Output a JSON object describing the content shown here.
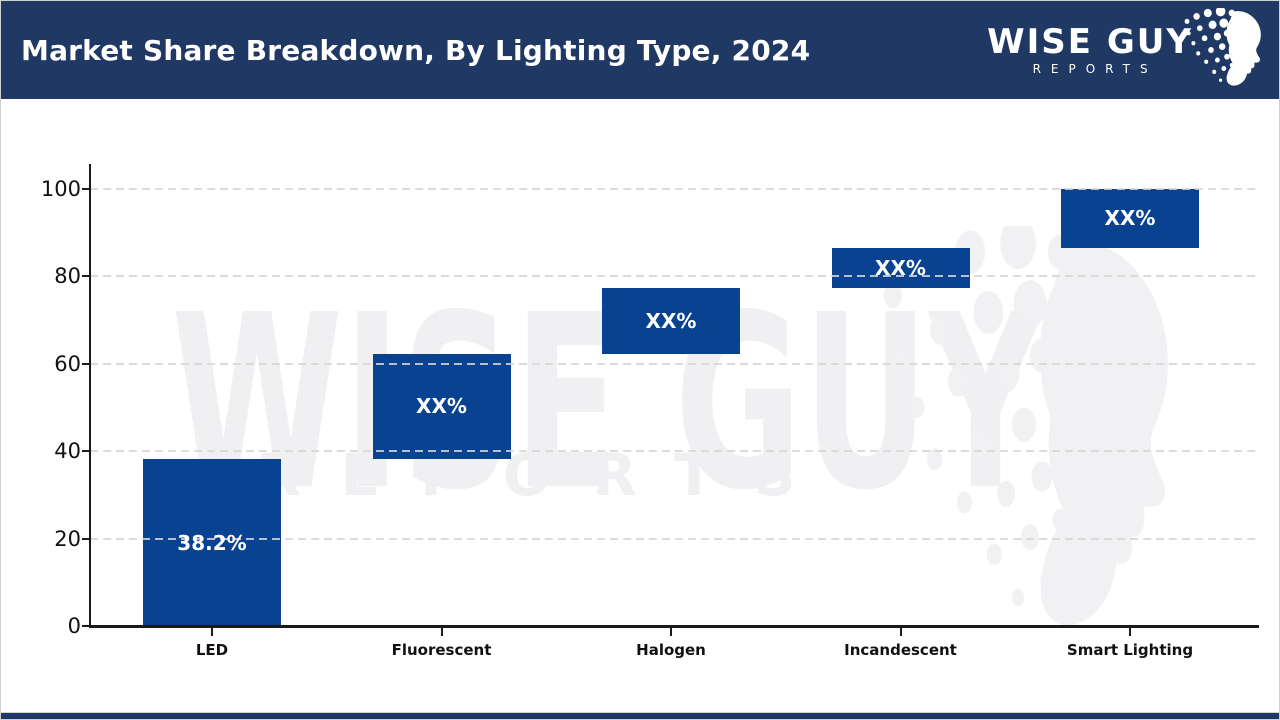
{
  "header": {
    "title": "Market Share Breakdown, By Lighting Type, 2024"
  },
  "logo": {
    "line1": "WISE GUY",
    "line2": "REPORTS"
  },
  "watermark": {
    "line1": "WISE GUY",
    "line2": "REPORTS"
  },
  "chart_data": {
    "type": "bar",
    "subtype": "waterfall",
    "title": "Market Share Breakdown, By Lighting Type, 2024",
    "categories": [
      "LED",
      "Fluorescent",
      "Halogen",
      "Incandescent",
      "Smart Lighting"
    ],
    "series": [
      {
        "name": "Market share (%)",
        "segments": [
          {
            "category": "LED",
            "start": 0,
            "end": 38.2,
            "label": "38.2%"
          },
          {
            "category": "Fluorescent",
            "start": 38.2,
            "end": 62.3,
            "label": "XX%"
          },
          {
            "category": "Halogen",
            "start": 62.3,
            "end": 77.3,
            "label": "XX%"
          },
          {
            "category": "Incandescent",
            "start": 77.3,
            "end": 86.5,
            "label": "XX%"
          },
          {
            "category": "Smart Lighting",
            "start": 86.5,
            "end": 100,
            "label": "XX%"
          }
        ]
      }
    ],
    "xlabel": "",
    "ylabel": "",
    "yticks": [
      0,
      20,
      40,
      60,
      80,
      100
    ],
    "ylim": [
      0,
      104.5
    ],
    "grid": "horizontal-dashed",
    "legend": "none",
    "colors": {
      "bar": "#084291",
      "bar_label": "#ffffff",
      "header_bg": "#1f3864",
      "gridline": "#d6d6d6",
      "watermark": "#f0f0f2"
    }
  }
}
